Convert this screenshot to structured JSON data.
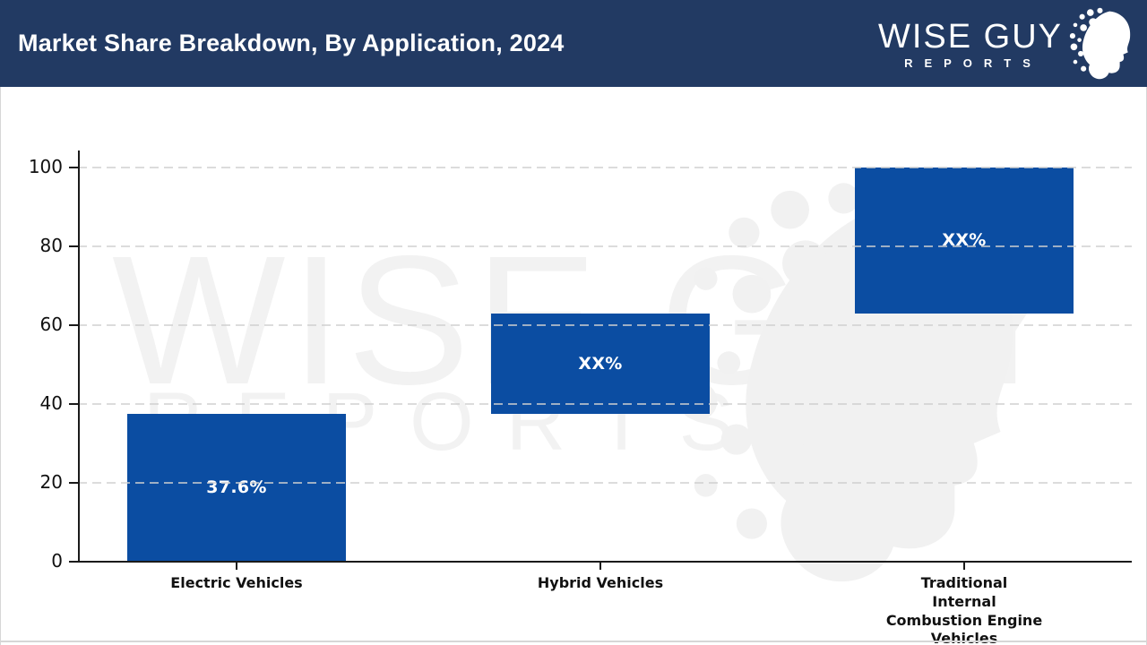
{
  "header": {
    "title": "Market Share Breakdown, By Application, 2024",
    "background_color": "#223a63",
    "logo": {
      "line1": "WISE GUY",
      "line2": "REPORTS",
      "mark_icon": "face-profile-dots-icon",
      "color": "#ffffff"
    }
  },
  "watermark": {
    "line1": "WISE GUY",
    "line2": "REPORTS",
    "mark_icon": "face-profile-dots-icon",
    "color": "#f2f2f2"
  },
  "chart_data": {
    "type": "bar",
    "subtype": "floating-segment-breakdown",
    "title": "Market Share Breakdown, By Application, 2024",
    "categories": [
      "Electric Vehicles",
      "Hybrid Vehicles",
      "Traditional\nInternal\nCombustion Engine\nVehicles"
    ],
    "segments": [
      {
        "category": "Electric Vehicles",
        "start": 0,
        "end": 37.6,
        "label": "37.6%"
      },
      {
        "category": "Hybrid Vehicles",
        "start": 37.6,
        "end": 63,
        "label": "XX%"
      },
      {
        "category": "Traditional Internal Combustion Engine Vehicles",
        "start": 63,
        "end": 100,
        "label": "XX%"
      }
    ],
    "xlabel": "",
    "ylabel": "",
    "ylim": [
      0,
      100
    ],
    "yticks": [
      "0",
      "20",
      "40",
      "60",
      "80",
      "100"
    ],
    "ytick_values": [
      0,
      20,
      40,
      60,
      80,
      100
    ],
    "grid": "horizontal-dashed-drawn-above-bars",
    "legend": "none",
    "bar_color": "#0b4da2",
    "bar_label_color": "#ffffff",
    "axis_color": "#1a1a1a"
  }
}
